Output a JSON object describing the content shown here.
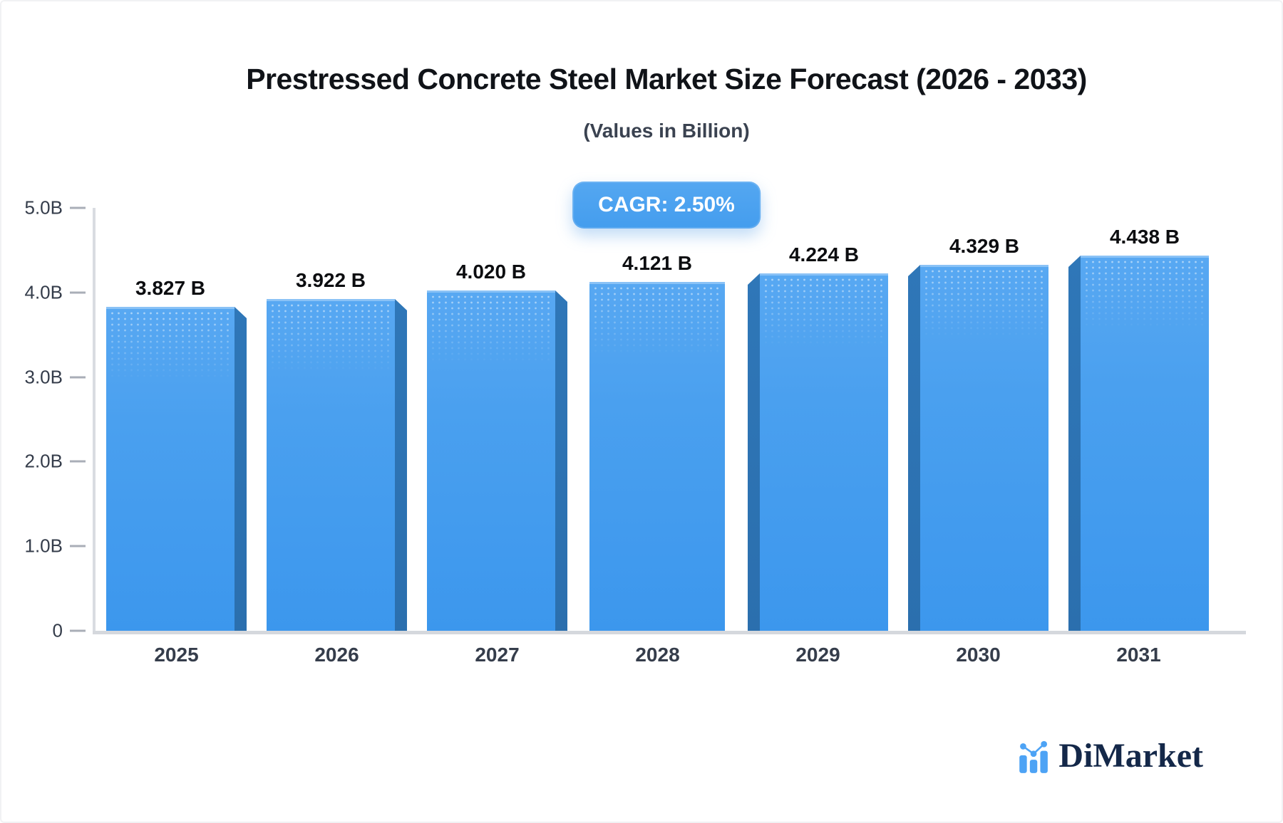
{
  "header": {
    "title": "Prestressed Concrete Steel Market Size Forecast (2026 - 2033)",
    "subtitle": "(Values in Billion)"
  },
  "badge": {
    "label": "CAGR: 2.50%",
    "background": "#49a0ef",
    "text_color": "#ffffff"
  },
  "chart_data": {
    "type": "bar",
    "title": "Prestressed Concrete Steel Market Size Forecast (2026 - 2033)",
    "subtitle": "(Values in Billion)",
    "cagr_label": "CAGR: 2.50%",
    "categories": [
      "2025",
      "2026",
      "2027",
      "2028",
      "2029",
      "2030",
      "2031"
    ],
    "values": [
      3.827,
      3.922,
      4.02,
      4.121,
      4.224,
      4.329,
      4.438
    ],
    "value_labels": [
      "3.827 B",
      "3.922 B",
      "4.020 B",
      "4.121 B",
      "4.224 B",
      "4.329 B",
      "4.438 B"
    ],
    "xlabel": "",
    "ylabel": "",
    "ylim": [
      0,
      5
    ],
    "yticks": [
      {
        "value": 5,
        "label": "5.0B"
      },
      {
        "value": 4,
        "label": "4.0B"
      },
      {
        "value": 3,
        "label": "3.0B"
      },
      {
        "value": 2,
        "label": "2.0B"
      },
      {
        "value": 1,
        "label": "1.0B"
      },
      {
        "value": 0,
        "label": "0"
      }
    ],
    "grid": false,
    "legend": "none",
    "bar_color": "#459DEE",
    "bar_side_color": "#2D73B5"
  },
  "logo": {
    "text": "DiMarket",
    "icon": "bar-line-chart-icon",
    "text_color": "#142849",
    "accent_color": "#4DA3F5"
  }
}
